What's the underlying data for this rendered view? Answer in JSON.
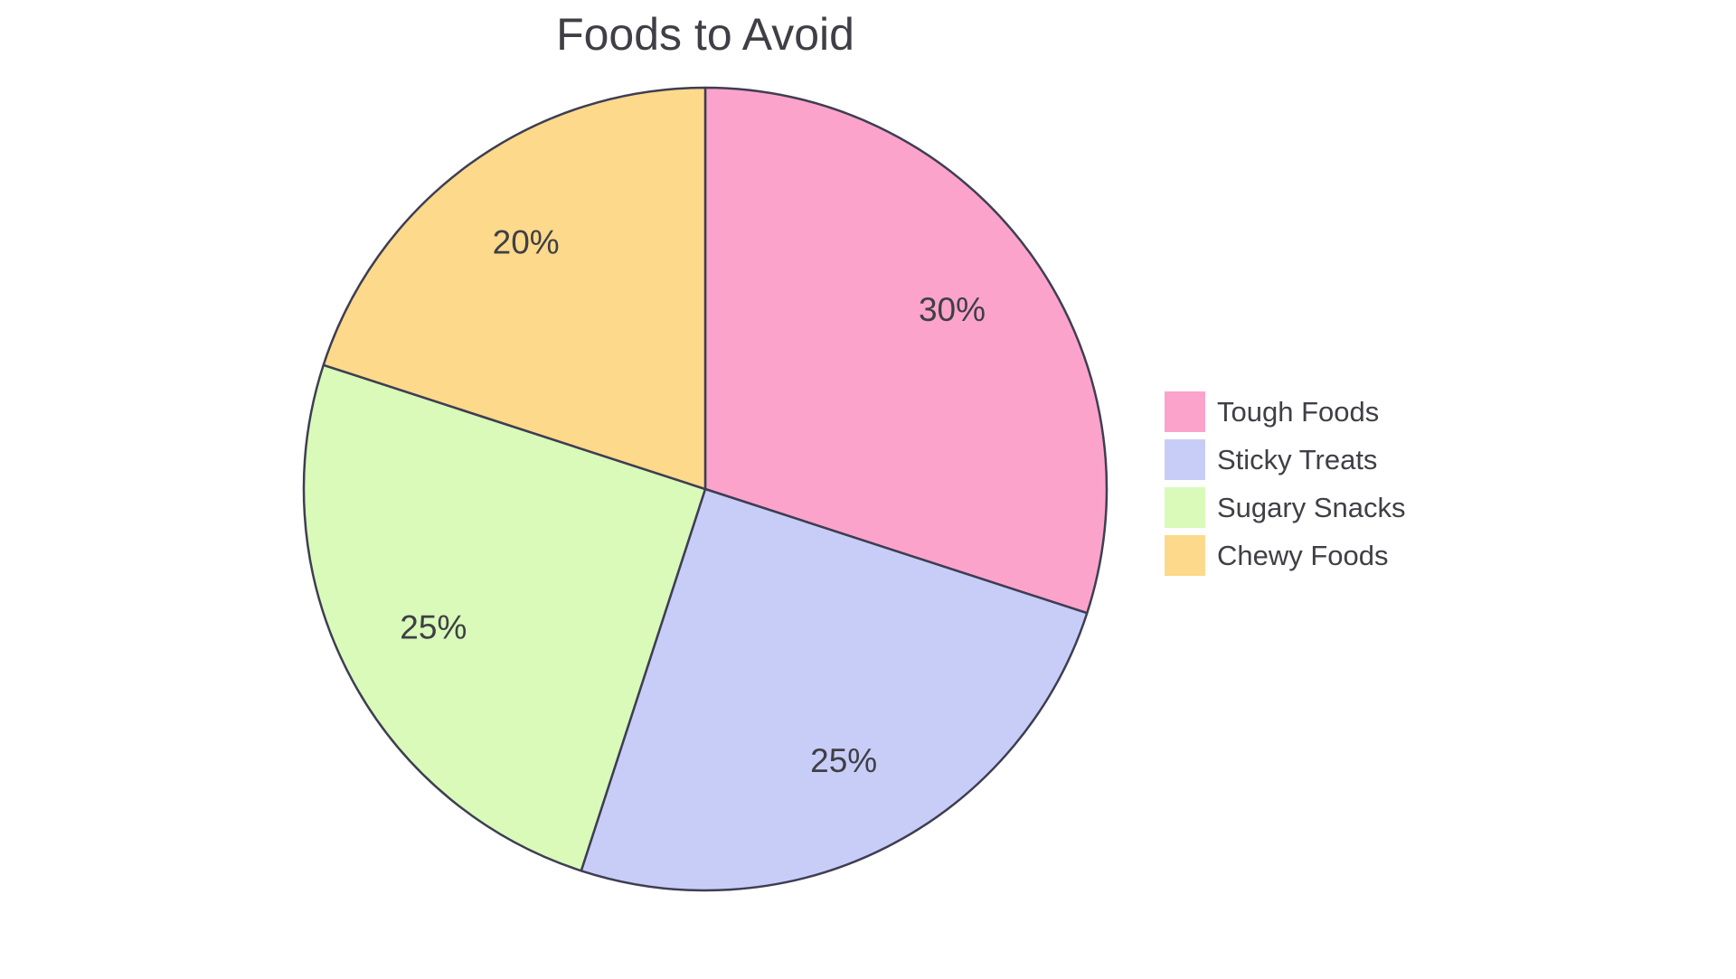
{
  "chart_data": {
    "type": "pie",
    "title": "Foods to Avoid",
    "categories": [
      "Tough Foods",
      "Sticky Treats",
      "Sugary Snacks",
      "Chewy Foods"
    ],
    "values": [
      30,
      25,
      25,
      20
    ],
    "slice_labels": [
      "30%",
      "25%",
      "25%",
      "20%"
    ],
    "colors": [
      "#FCA3CC",
      "#C8CDF8",
      "#D9FAB9",
      "#FCD98B"
    ],
    "stroke_color": "#3E3E52",
    "text_color": "#3F3F46",
    "legend_position": "right",
    "start_angle": "top",
    "direction": "clockwise",
    "background": "#FFFFFF"
  }
}
